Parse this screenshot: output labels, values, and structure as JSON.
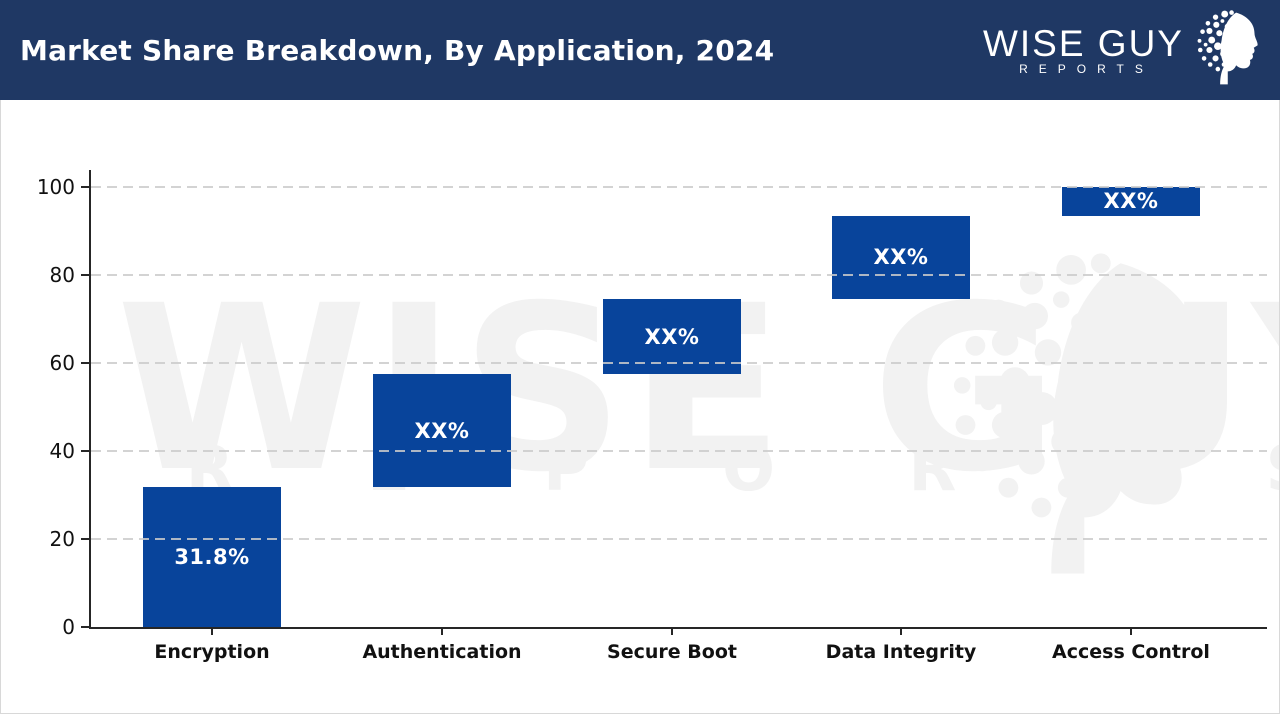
{
  "header": {
    "title": "Market Share Breakdown, By Application, 2024",
    "logo": {
      "wordmark": "WISE GUY",
      "subtitle": "REPORTS",
      "face_icon": "dotted-head-profile"
    }
  },
  "watermark": {
    "line1": "WISE GUY",
    "line2": "R E P O R T S",
    "face_icon": "dotted-head-profile"
  },
  "chart_data": {
    "type": "bar",
    "subtype": "waterfall",
    "title": "Market Share Breakdown, By Application, 2024",
    "xlabel": "",
    "ylabel": "",
    "categories": [
      "Encryption",
      "Authentication",
      "Secure Boot",
      "Data Integrity",
      "Access Control"
    ],
    "segments": [
      {
        "category": "Encryption",
        "start": 0,
        "end": 31.8,
        "label": "31.8%"
      },
      {
        "category": "Authentication",
        "start": 31.8,
        "end": 57.5,
        "label": "XX%"
      },
      {
        "category": "Secure Boot",
        "start": 57.5,
        "end": 74.5,
        "label": "XX%"
      },
      {
        "category": "Data Integrity",
        "start": 74.5,
        "end": 93.5,
        "label": "XX%"
      },
      {
        "category": "Access Control",
        "start": 93.5,
        "end": 100,
        "label": "XX%"
      }
    ],
    "yticks": [
      0,
      20,
      40,
      60,
      80,
      100
    ],
    "ylim": [
      0,
      104
    ],
    "grid": "horizontal-dashed-over-bars",
    "legend": "none"
  },
  "colors": {
    "header_bg": "#1f3864",
    "bar": "#08449b",
    "bar_label": "#ffffff",
    "grid": "#cbcbcb",
    "axis": "#262626",
    "tick_label": "#111111",
    "watermark": "#f2f2f2",
    "card_border": "#d8d8d8"
  }
}
